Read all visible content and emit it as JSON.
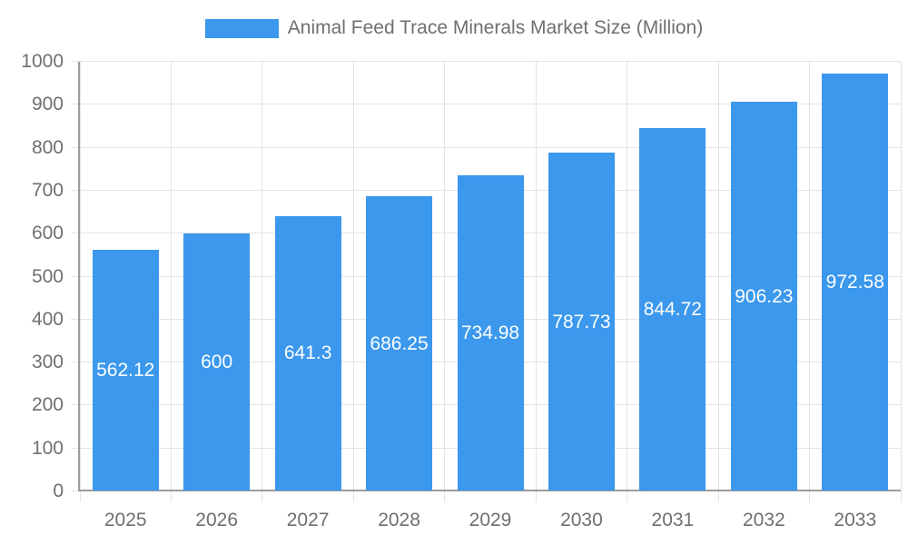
{
  "chart_data": {
    "type": "bar",
    "title": "Animal Feed Trace Minerals Market Size (Million)",
    "categories": [
      "2025",
      "2026",
      "2027",
      "2028",
      "2029",
      "2030",
      "2031",
      "2032",
      "2033"
    ],
    "series": [
      {
        "name": "Animal Feed Trace Minerals Market Size (Million)",
        "values": [
          562.12,
          600,
          641.3,
          686.25,
          734.98,
          787.73,
          844.72,
          906.23,
          972.58
        ],
        "value_labels": [
          "562.12",
          "600",
          "641.3",
          "686.25",
          "734.98",
          "787.73",
          "844.72",
          "906.23",
          "972.58"
        ]
      }
    ],
    "xlabel": "",
    "ylabel": "",
    "ylim": [
      0,
      1000
    ],
    "y_ticks": [
      0,
      100,
      200,
      300,
      400,
      500,
      600,
      700,
      800,
      900,
      1000
    ],
    "grid": true,
    "legend_position": "top-center",
    "value_label_position": "inside-center",
    "colors": {
      "bar": "#3b98ec",
      "grid": "#e3e3e3",
      "axis": "#9b9b9b",
      "text": "#6f6f6f",
      "value_label": "#ffffff",
      "background": "#ffffff"
    }
  }
}
